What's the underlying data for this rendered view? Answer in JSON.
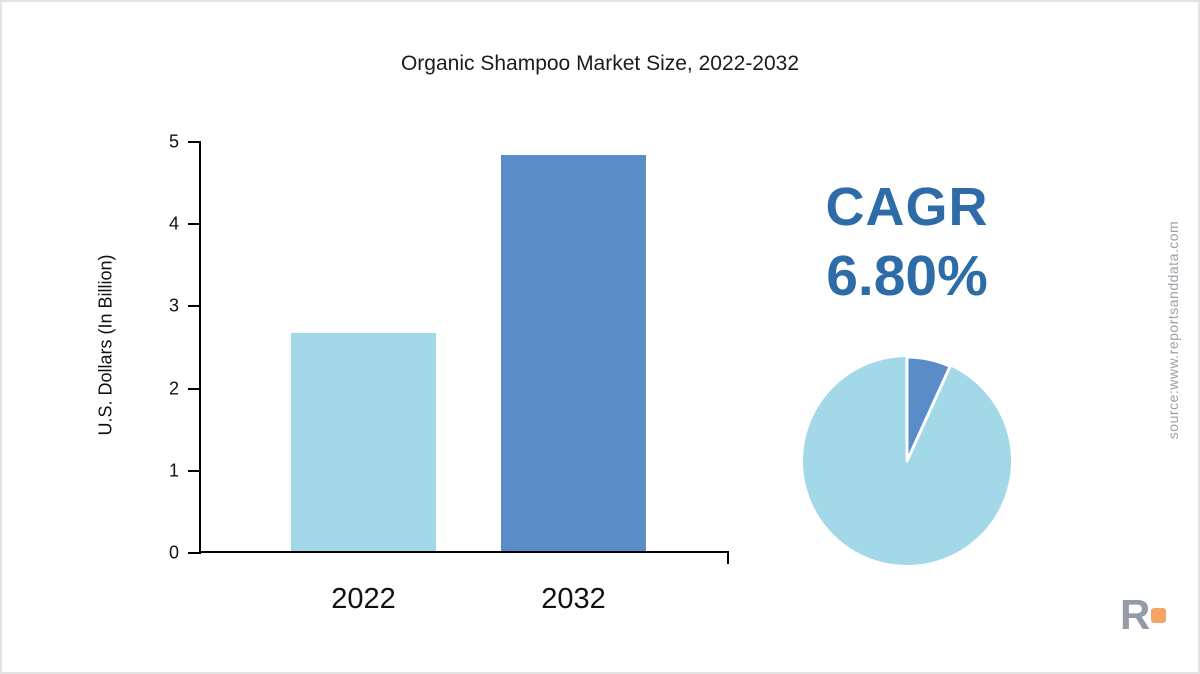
{
  "page": {
    "source_text": "source:www.reportsanddata.com",
    "logo_text": "R"
  },
  "chart_data": {
    "type": "bar",
    "title": "Organic Shampoo Market Size, 2022-2032",
    "categories": [
      "2022",
      "2032"
    ],
    "values": [
      2.65,
      4.82
    ],
    "xlabel": "",
    "ylabel": "U.S. Dollars (In Billion)",
    "ylim": [
      0,
      5
    ],
    "yticks": [
      0,
      1,
      2,
      3,
      4,
      5
    ],
    "grid": false,
    "legend": "none",
    "bar_colors": [
      "#a2d8e8",
      "#5a8cc8"
    ],
    "annotations": {
      "cagr_label": "CAGR",
      "cagr_value": "6.80%",
      "accent_color": "#2e6ca8"
    },
    "pie": {
      "type": "pie",
      "values": [
        6.8,
        93.2
      ],
      "colors": [
        "#5a8cc8",
        "#a2d8e8"
      ],
      "start_angle_deg": -90
    }
  }
}
